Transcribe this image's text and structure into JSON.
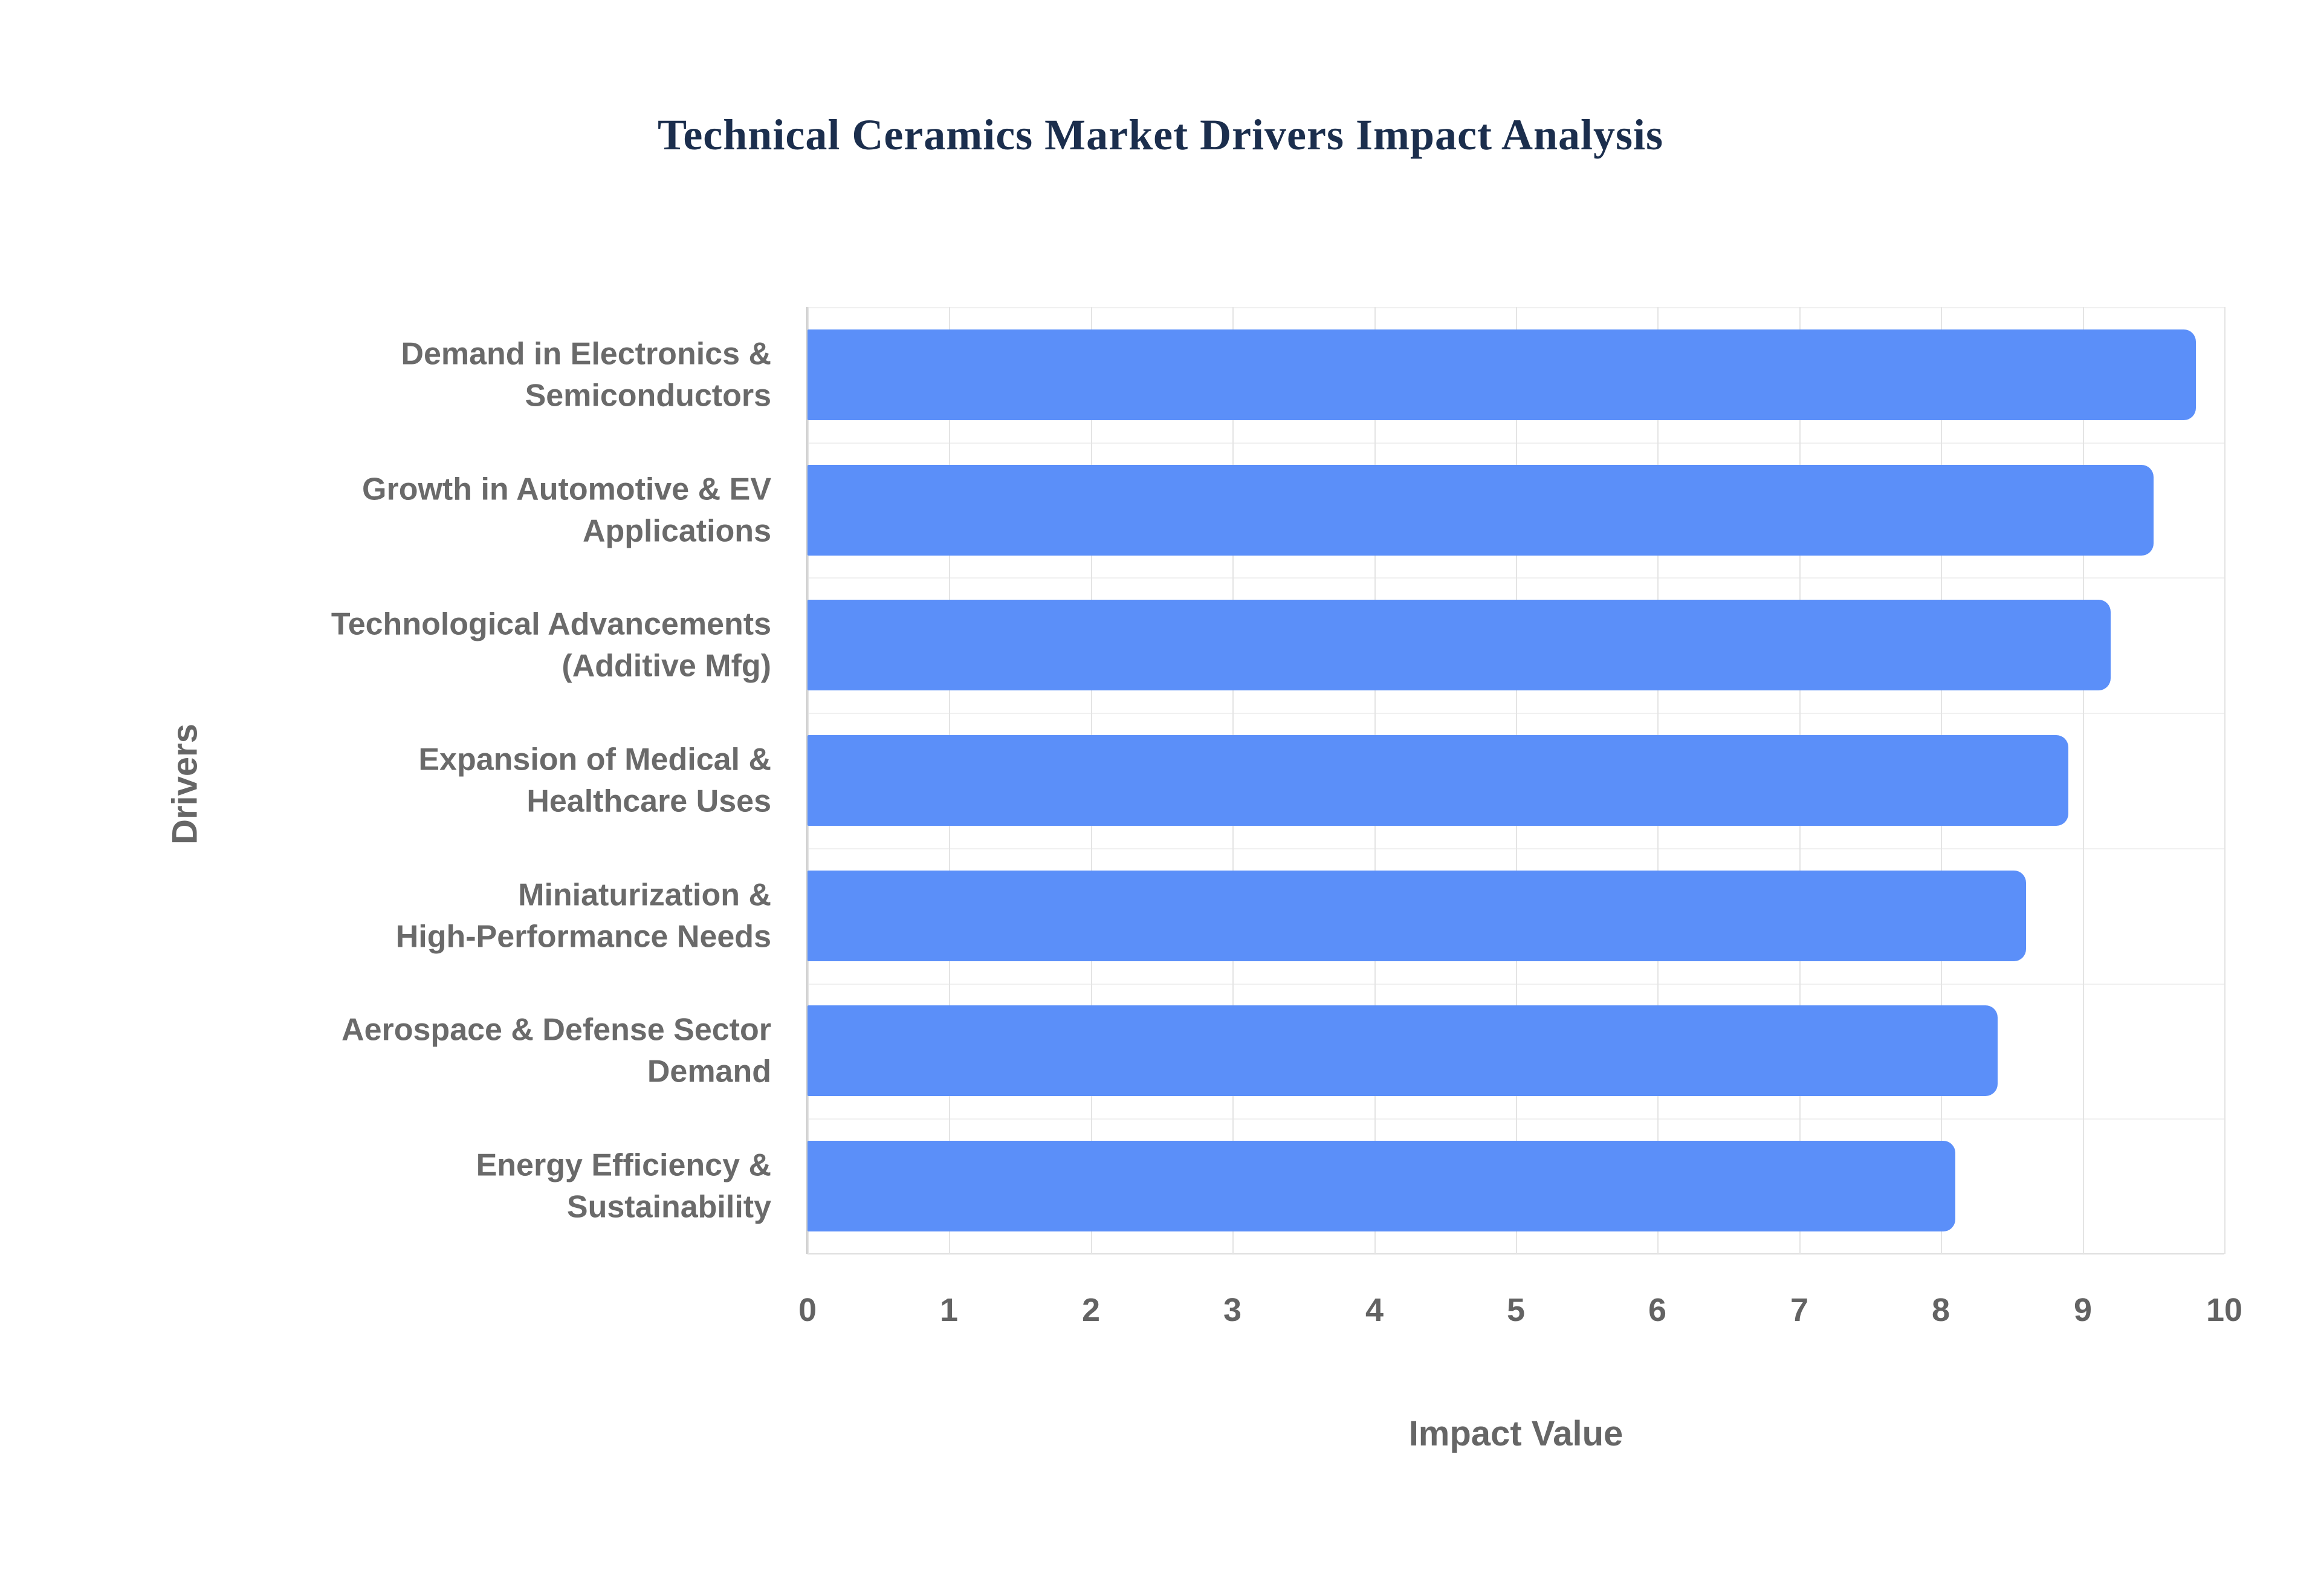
{
  "chart_data": {
    "type": "bar",
    "orientation": "horizontal",
    "title": "Technical Ceramics Market Drivers Impact Analysis",
    "xlabel": "Impact Value",
    "ylabel": "Drivers",
    "categories": [
      "Demand in Electronics &\nSemiconductors",
      "Growth in Automotive & EV\nApplications",
      "Technological Advancements\n(Additive Mfg)",
      "Expansion of Medical &\nHealthcare Uses",
      "Miniaturization &\nHigh-Performance Needs",
      "Aerospace & Defense Sector\nDemand",
      "Energy Efficiency &\nSustainability"
    ],
    "values": [
      9.8,
      9.5,
      9.2,
      8.9,
      8.6,
      8.4,
      8.1
    ],
    "xlim": [
      0,
      10
    ],
    "xticks": [
      0,
      1,
      2,
      3,
      4,
      5,
      6,
      7,
      8,
      9,
      10
    ],
    "grid": true,
    "legend": "none",
    "colors": {
      "bar": "#5b8ff9",
      "title": "#1b2e4d",
      "axis_labels": "#666666",
      "tick_labels": "#636363",
      "category_labels": "#6a6a6a",
      "gridline": "#e4e4e4",
      "axis_line": "#c9c9c9"
    }
  }
}
